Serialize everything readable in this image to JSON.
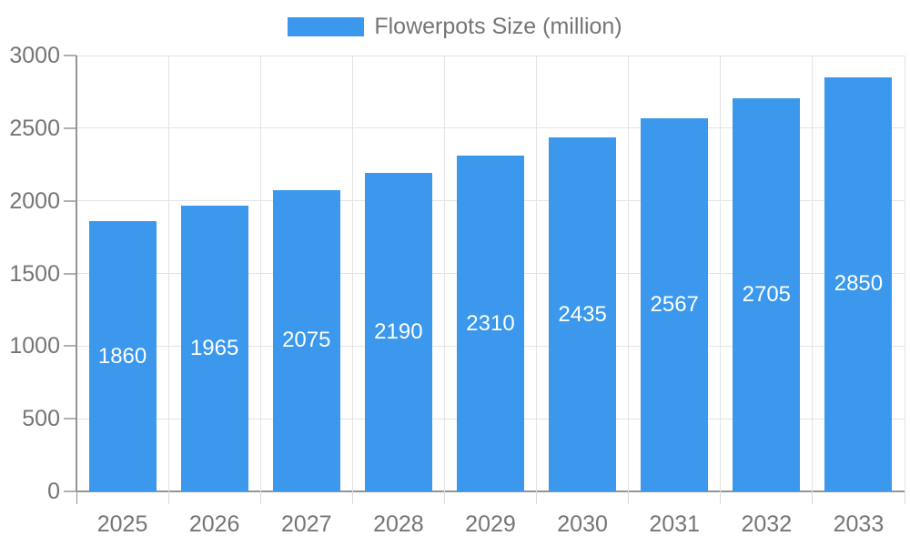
{
  "legend": {
    "label": "Flowerpots Size (million)"
  },
  "colors": {
    "bar_fill": "#3b98ec",
    "axis_line": "#949494",
    "gridline": "#e3e3e3",
    "x_tick": "#dadada",
    "y_tick": "#b0b0b0",
    "tick_label": "#757575",
    "legend_text": "#757575",
    "bar_value_label": "#ffffff",
    "background": "#ffffff"
  },
  "chart_data": {
    "type": "bar",
    "title": "",
    "xlabel": "",
    "ylabel": "",
    "categories": [
      "2025",
      "2026",
      "2027",
      "2028",
      "2029",
      "2030",
      "2031",
      "2032",
      "2033"
    ],
    "series": [
      {
        "name": "Flowerpots Size (million)",
        "values": [
          1860,
          1965,
          2075,
          2190,
          2310,
          2435,
          2567,
          2705,
          2850
        ]
      }
    ],
    "value_labels_shown": true,
    "ylim": [
      0,
      3000
    ],
    "yticks": [
      0,
      500,
      1000,
      1500,
      2000,
      2500,
      3000
    ],
    "grid": true,
    "legend_position": "top"
  }
}
